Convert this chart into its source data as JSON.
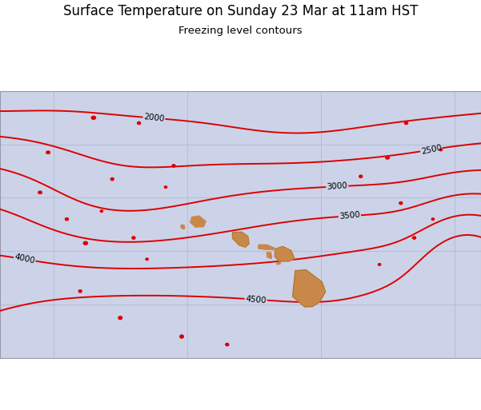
{
  "title": "Surface Temperature on Sunday 23 Mar at 11am HST",
  "subtitle": "Freezing level contours",
  "background_color": "#ccd3e8",
  "border_color": "#9999aa",
  "grid_color": "#b5bdd4",
  "contour_color": "#dd0000",
  "contour_linewidth": 1.4,
  "label_fontsize": 7.5,
  "title_fontsize": 12,
  "subtitle_fontsize": 9.5,
  "fig_width": 6.01,
  "fig_height": 5.13,
  "lon_min": -167.0,
  "lon_max": -149.0,
  "lat_min": 17.0,
  "lat_max": 27.0,
  "island_color": "#c8884a",
  "island_outline": "#996622"
}
